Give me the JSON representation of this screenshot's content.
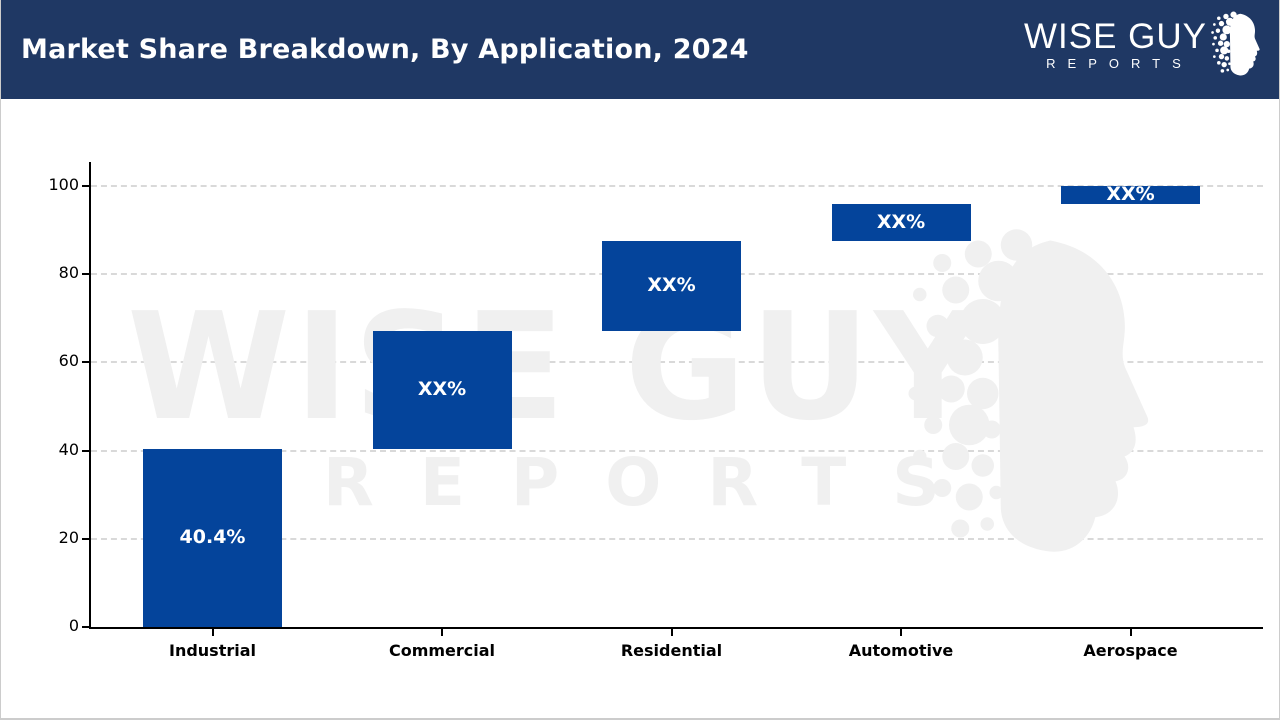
{
  "header": {
    "title": "Market Share Breakdown, By Application, 2024",
    "logo": {
      "line1": "WISE GUY",
      "line2": "REPORTS"
    }
  },
  "watermark": {
    "line1": "WISE GUY",
    "line2": "REPORTS"
  },
  "colors": {
    "header_bg": "#1f3864",
    "bar": "#04449b",
    "grid": "#d9d9d9",
    "axis": "#000000",
    "bar_label": "#ffffff",
    "watermark": "#f0f0f0"
  },
  "chart_data": {
    "type": "bar",
    "subtype": "waterfall",
    "title": "Market Share Breakdown, By Application, 2024",
    "xlabel": "",
    "ylabel": "",
    "ylim": [
      0,
      100
    ],
    "yticks": [
      0,
      20,
      40,
      60,
      80,
      100
    ],
    "grid": "horizontal-dashed",
    "legend": "none",
    "categories": [
      "Industrial",
      "Commercial",
      "Residential",
      "Automotive",
      "Aerospace"
    ],
    "segments": [
      {
        "category": "Industrial",
        "start": 0,
        "end": 40.4,
        "value": 40.4,
        "label": "40.4%"
      },
      {
        "category": "Commercial",
        "start": 40.4,
        "end": 67.2,
        "value": 26.8,
        "label": "XX%"
      },
      {
        "category": "Residential",
        "start": 67.2,
        "end": 87.6,
        "value": 20.4,
        "label": "XX%"
      },
      {
        "category": "Automotive",
        "start": 87.6,
        "end": 96.0,
        "value": 8.4,
        "label": "XX%"
      },
      {
        "category": "Aerospace",
        "start": 96.0,
        "end": 100.0,
        "value": 4.0,
        "label": "XX%"
      }
    ]
  }
}
